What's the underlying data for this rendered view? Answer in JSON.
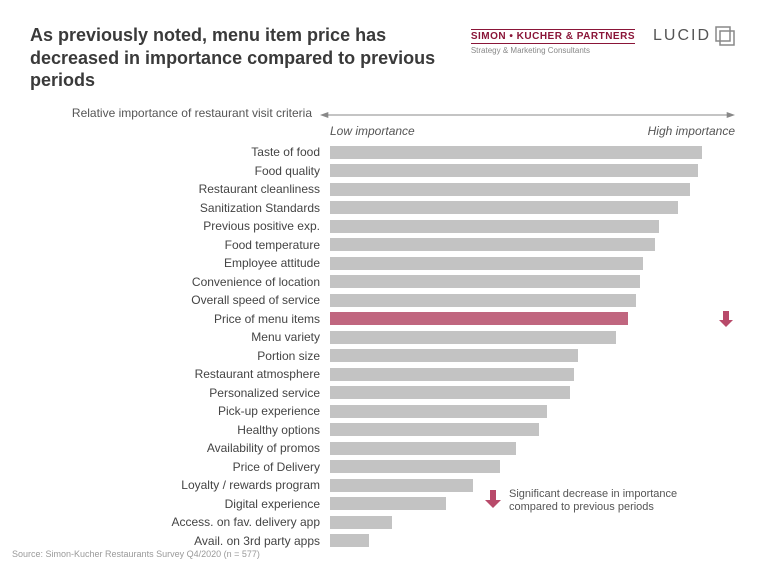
{
  "title": "As previously noted, menu item price has decreased in importance compared to previous periods",
  "logos": {
    "skp_line1": "SIMON • KUCHER & PARTNERS",
    "skp_line2": "Strategy & Marketing Consultants",
    "lucid": "LUCID"
  },
  "axis": {
    "title": "Relative importance of restaurant visit criteria",
    "low": "Low importance",
    "high": "High importance",
    "line_color": "#888888"
  },
  "chart": {
    "type": "bar",
    "bar_color_default": "#c3c3c3",
    "bar_color_highlight": "#c0667f",
    "arrow_color": "#b84a6a",
    "max_value": 100,
    "rows": [
      {
        "label": "Taste of food",
        "value": 96,
        "highlight": false,
        "arrow": false
      },
      {
        "label": "Food quality",
        "value": 95,
        "highlight": false,
        "arrow": false
      },
      {
        "label": "Restaurant cleanliness",
        "value": 93,
        "highlight": false,
        "arrow": false
      },
      {
        "label": "Sanitization Standards",
        "value": 90,
        "highlight": false,
        "arrow": false
      },
      {
        "label": "Previous positive exp.",
        "value": 85,
        "highlight": false,
        "arrow": false
      },
      {
        "label": "Food temperature",
        "value": 84,
        "highlight": false,
        "arrow": false
      },
      {
        "label": "Employee attitude",
        "value": 81,
        "highlight": false,
        "arrow": false
      },
      {
        "label": "Convenience of location",
        "value": 80,
        "highlight": false,
        "arrow": false
      },
      {
        "label": "Overall speed of service",
        "value": 79,
        "highlight": false,
        "arrow": false
      },
      {
        "label": "Price of menu items",
        "value": 77,
        "highlight": true,
        "arrow": true
      },
      {
        "label": "Menu variety",
        "value": 74,
        "highlight": false,
        "arrow": false
      },
      {
        "label": "Portion size",
        "value": 64,
        "highlight": false,
        "arrow": false
      },
      {
        "label": "Restaurant atmosphere",
        "value": 63,
        "highlight": false,
        "arrow": false
      },
      {
        "label": "Personalized service",
        "value": 62,
        "highlight": false,
        "arrow": false
      },
      {
        "label": "Pick-up experience",
        "value": 56,
        "highlight": false,
        "arrow": false
      },
      {
        "label": "Healthy options",
        "value": 54,
        "highlight": false,
        "arrow": false
      },
      {
        "label": "Availability of promos",
        "value": 48,
        "highlight": false,
        "arrow": false
      },
      {
        "label": "Price of Delivery",
        "value": 44,
        "highlight": false,
        "arrow": false
      },
      {
        "label": "Loyalty / rewards program",
        "value": 37,
        "highlight": false,
        "arrow": false
      },
      {
        "label": "Digital experience",
        "value": 30,
        "highlight": false,
        "arrow": false
      },
      {
        "label": "Access. on fav. delivery app",
        "value": 16,
        "highlight": false,
        "arrow": false
      },
      {
        "label": "Avail. on 3rd party apps",
        "value": 10,
        "highlight": false,
        "arrow": false
      }
    ]
  },
  "legend": {
    "text": "Significant decrease in importance compared to previous periods"
  },
  "source": "Source: Simon-Kucher Restaurants Survey Q4/2020 (n = 577)",
  "colors": {
    "title_text": "#3a3a3a",
    "label_text": "#444444",
    "muted_text": "#888888",
    "skp_brand": "#8a1538",
    "background": "#ffffff"
  }
}
